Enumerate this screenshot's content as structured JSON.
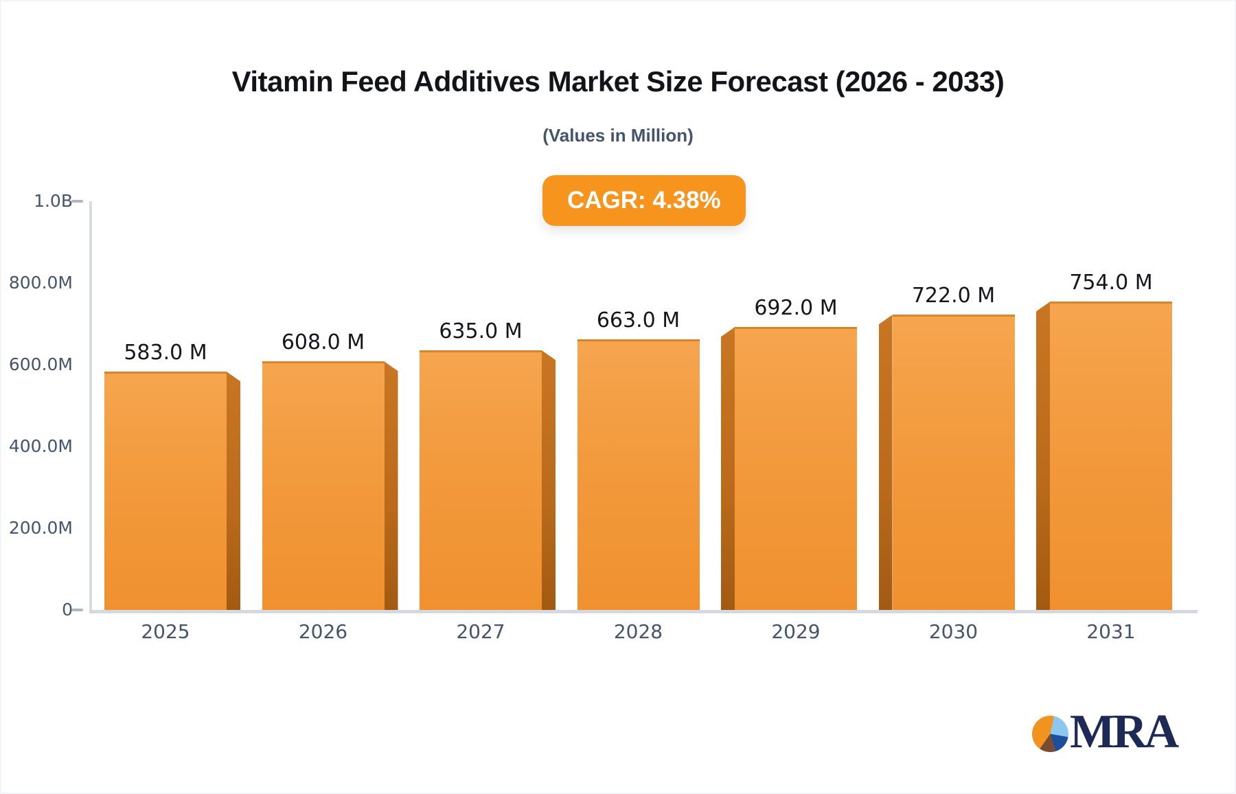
{
  "header": {
    "title": "Vitamin Feed Additives Market Size Forecast (2026 - 2033)",
    "subtitle": "(Values in Million)",
    "cagr_badge": "CAGR: 4.38%"
  },
  "chart_data": {
    "type": "bar",
    "title": "Vitamin Feed Additives Market Size Forecast (2026 - 2033)",
    "subtitle": "(Values in Million)",
    "cagr_percent": 4.38,
    "categories": [
      "2025",
      "2026",
      "2027",
      "2028",
      "2029",
      "2030",
      "2031"
    ],
    "values": [
      583,
      608,
      635,
      663,
      692,
      722,
      754
    ],
    "value_labels": [
      "583.0 M",
      "608.0 M",
      "635.0 M",
      "663.0 M",
      "692.0 M",
      "722.0 M",
      "754.0 M"
    ],
    "y_axis": {
      "range": [
        0,
        1000
      ],
      "ticks": [
        {
          "label": "1.0B",
          "value": 1000,
          "dash": true
        },
        {
          "label": "800.0M",
          "value": 800,
          "dash": false
        },
        {
          "label": "600.0M",
          "value": 600,
          "dash": false
        },
        {
          "label": "400.0M",
          "value": 400,
          "dash": false
        },
        {
          "label": "200.0M",
          "value": 200,
          "dash": false
        },
        {
          "label": "0",
          "value": 0,
          "dash": true
        }
      ]
    },
    "grid": false,
    "legend": false,
    "bar_style": "3d-perspective-center",
    "bar_color": "#F29A3D",
    "bar_side_color": "#B96A1A"
  },
  "footer": {
    "logo_text": "MRA"
  },
  "colors": {
    "badge_bg": "#F7941E",
    "axis_line": "#D8DCE1",
    "axis_label": "#44546A",
    "value_label": "#14161C",
    "title": "#121419",
    "logo_navy": "#1D2A56"
  }
}
